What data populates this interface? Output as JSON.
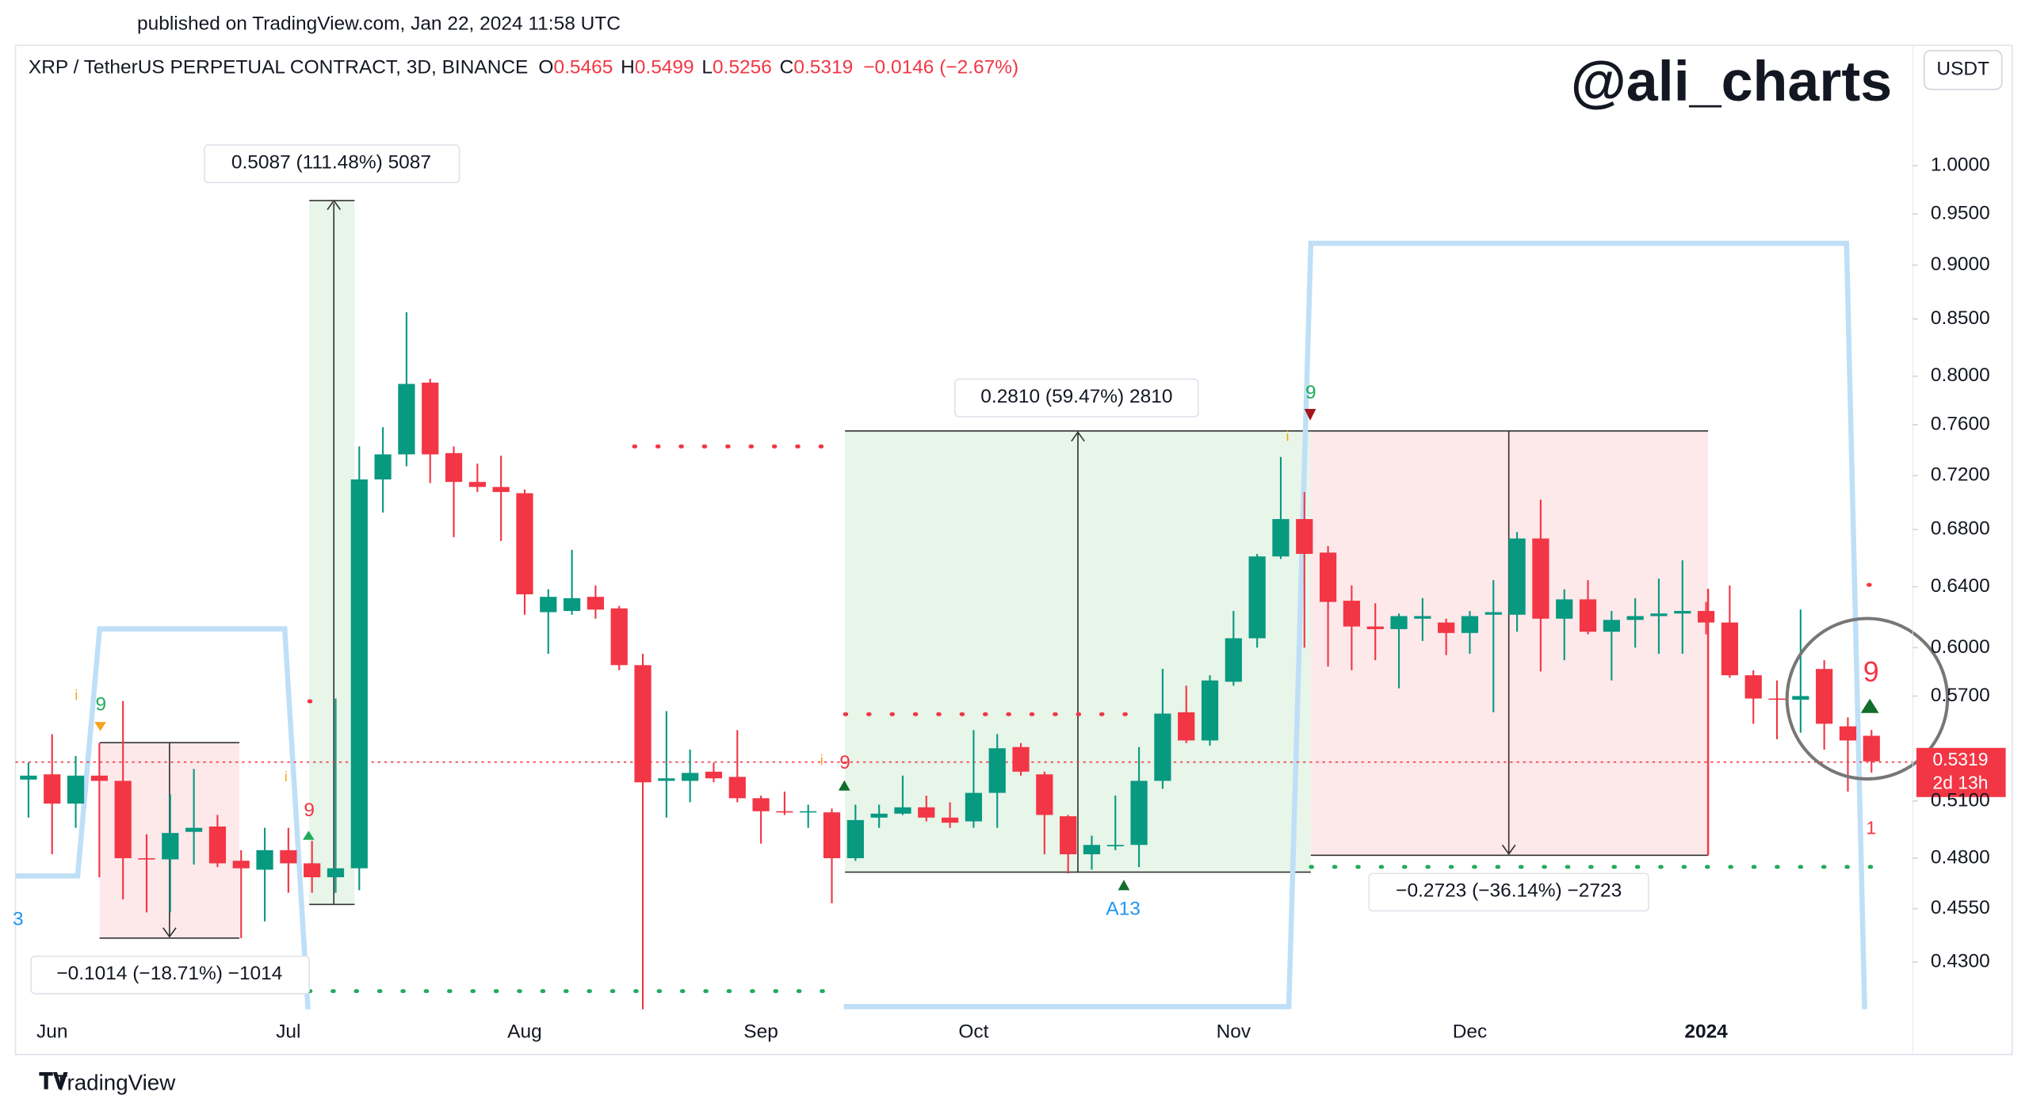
{
  "page": {
    "published": "published on TradingView.com, Jan 22, 2024 11:58 UTC",
    "brand": "TradingView",
    "watermark": "@ali_charts",
    "currency": "USDT"
  },
  "chart_data": {
    "type": "candlestick",
    "title": "XRP / TetherUS PERPETUAL CONTRACT, 3D, BINANCE",
    "ohlc_letters": [
      "O",
      "H",
      "L",
      "C"
    ],
    "change": "−0.0146 (−2.67%)",
    "countdown": "2d 13h",
    "up_color": "#089981",
    "down_color": "#f23645",
    "log_scale": true,
    "grid": false,
    "categories": [
      null,
      "Jun",
      null,
      null,
      null,
      null,
      null,
      null,
      null,
      null,
      null,
      "Jul",
      null,
      null,
      null,
      null,
      null,
      null,
      null,
      null,
      null,
      "Aug",
      null,
      null,
      null,
      null,
      null,
      null,
      null,
      null,
      null,
      "Sep",
      null,
      null,
      null,
      null,
      null,
      null,
      null,
      null,
      "Oct",
      null,
      null,
      null,
      null,
      null,
      null,
      null,
      null,
      null,
      null,
      "Nov",
      null,
      null,
      null,
      null,
      null,
      null,
      null,
      null,
      null,
      "Dec",
      null,
      null,
      null,
      null,
      null,
      null,
      null,
      null,
      null,
      "2024",
      null,
      null,
      null,
      null,
      null,
      null,
      null
    ],
    "open": [
      0.5217,
      0.5246,
      0.5086,
      0.5239,
      0.521,
      0.48,
      0.4794,
      0.4936,
      0.4964,
      0.4787,
      0.4742,
      0.4841,
      0.4774,
      0.4704,
      0.4749,
      0.7171,
      0.7364,
      0.7946,
      0.7374,
      0.7152,
      0.7114,
      0.7067,
      0.623,
      0.6238,
      0.6332,
      0.6255,
      0.589,
      0.521,
      0.521,
      0.5261,
      0.5232,
      0.5115,
      0.5045,
      0.5039,
      0.5039,
      0.48,
      0.5011,
      0.5032,
      0.5066,
      0.5011,
      0.4991,
      0.5144,
      0.54,
      0.5246,
      0.5018,
      0.482,
      0.4861,
      0.4868,
      0.521,
      0.5603,
      0.5438,
      0.5787,
      0.606,
      0.6609,
      0.6876,
      0.6636,
      0.6306,
      0.6136,
      0.6119,
      0.6187,
      0.6162,
      0.6094,
      0.6213,
      0.6213,
      0.6736,
      0.6187,
      0.6315,
      0.6102,
      0.6179,
      0.6204,
      0.6221,
      0.6238,
      0.6162,
      0.5827,
      0.5685,
      0.5678,
      0.5866,
      0.552,
      0.5465
    ],
    "high": [
      0.5312,
      0.5475,
      0.5349,
      0.5423,
      0.567,
      0.4923,
      0.5137,
      0.5276,
      0.5025,
      0.4841,
      0.4957,
      0.4957,
      0.4889,
      0.5685,
      0.7426,
      0.7579,
      0.8561,
      0.7978,
      0.7426,
      0.7292,
      0.7354,
      0.7095,
      0.6383,
      0.6655,
      0.6409,
      0.6272,
      0.5961,
      0.561,
      0.5385,
      0.5312,
      0.5498,
      0.5129,
      0.5151,
      0.508,
      0.5059,
      0.508,
      0.508,
      0.5239,
      0.5129,
      0.5093,
      0.5498,
      0.5475,
      0.5423,
      0.5261,
      0.5025,
      0.4916,
      0.5129,
      0.54,
      0.5866,
      0.5763,
      0.5827,
      0.6238,
      0.6627,
      0.7344,
      0.7076,
      0.6682,
      0.6409,
      0.6289,
      0.6221,
      0.6323,
      0.6187,
      0.6238,
      0.6445,
      0.6782,
      0.7019,
      0.6383,
      0.6445,
      0.6238,
      0.6323,
      0.6455,
      0.6582,
      0.6298,
      0.6409,
      0.5858,
      0.5795,
      0.6247,
      0.5921,
      0.5573,
      0.5499
    ],
    "low": [
      0.5011,
      0.482,
      0.4957,
      0.4704,
      0.4595,
      0.4532,
      0.4532,
      0.4768,
      0.4755,
      0.441,
      0.4489,
      0.4627,
      0.4627,
      0.4627,
      0.464,
      0.6924,
      0.7272,
      0.7143,
      0.6745,
      0.7076,
      0.6718,
      0.6213,
      0.5961,
      0.6213,
      0.6187,
      0.5858,
      0.409,
      0.5011,
      0.5093,
      0.5202,
      0.5093,
      0.4875,
      0.5025,
      0.4957,
      0.4576,
      0.4787,
      0.4957,
      0.5025,
      0.4991,
      0.4957,
      0.4957,
      0.4957,
      0.5239,
      0.482,
      0.4723,
      0.4742,
      0.4841,
      0.4755,
      0.5166,
      0.5423,
      0.5408,
      0.5763,
      0.6,
      0.6591,
      0.6,
      0.5882,
      0.5858,
      0.5921,
      0.5747,
      0.6043,
      0.5953,
      0.5961,
      0.5603,
      0.6102,
      0.585,
      0.5921,
      0.6085,
      0.5795,
      0.6,
      0.5961,
      0.5961,
      0.6085,
      0.5811,
      0.5535,
      0.5445,
      0.5483,
      0.5385,
      0.5151,
      0.5256
    ],
    "close": [
      0.5239,
      0.5086,
      0.5239,
      0.521,
      0.48,
      0.4794,
      0.493,
      0.4957,
      0.4774,
      0.4749,
      0.4841,
      0.4774,
      0.4704,
      0.4749,
      0.7171,
      0.7364,
      0.7935,
      0.7364,
      0.7152,
      0.7114,
      0.7076,
      0.6349,
      0.6332,
      0.6323,
      0.6247,
      0.589,
      0.5202,
      0.5224,
      0.5254,
      0.5224,
      0.5115,
      0.5045,
      0.5039,
      0.5045,
      0.48,
      0.4998,
      0.5032,
      0.5066,
      0.5011,
      0.4984,
      0.5144,
      0.5393,
      0.5261,
      0.5025,
      0.482,
      0.4868,
      0.4868,
      0.521,
      0.5595,
      0.5438,
      0.5795,
      0.606,
      0.6609,
      0.6876,
      0.6627,
      0.6298,
      0.6136,
      0.6119,
      0.6204,
      0.6204,
      0.6094,
      0.6204,
      0.623,
      0.6736,
      0.6187,
      0.6315,
      0.6102,
      0.6179,
      0.6204,
      0.6221,
      0.6238,
      0.6162,
      0.5827,
      0.5685,
      0.5678,
      0.57,
      0.5535,
      0.5438,
      0.5319
    ],
    "ylim": [
      0.409,
      1.136
    ],
    "yticks": [
      {
        "value": 1.0,
        "label": "1.0000"
      },
      {
        "value": 0.95,
        "label": "0.9500"
      },
      {
        "value": 0.9,
        "label": "0.9000"
      },
      {
        "value": 0.85,
        "label": "0.8500"
      },
      {
        "value": 0.8,
        "label": "0.8000"
      },
      {
        "value": 0.76,
        "label": "0.7600"
      },
      {
        "value": 0.72,
        "label": "0.7200"
      },
      {
        "value": 0.68,
        "label": "0.6800"
      },
      {
        "value": 0.64,
        "label": "0.6400"
      },
      {
        "value": 0.6,
        "label": "0.6000"
      },
      {
        "value": 0.57,
        "label": "0.5700"
      },
      {
        "value": 0.51,
        "label": "0.5100"
      },
      {
        "value": 0.48,
        "label": "0.4800"
      },
      {
        "value": 0.455,
        "label": "0.4550"
      },
      {
        "value": 0.43,
        "label": "0.4300"
      }
    ],
    "annotations": [
      "0.5087 (111.48%) 5087",
      "0.2810 (59.47%) 2810",
      "−0.2723 (−36.14%) −2723",
      "−0.1014 (−18.71%) −1014",
      "9",
      "9",
      "9",
      "9",
      "9",
      "A13",
      "1",
      "3",
      "i",
      "i",
      "i",
      "i"
    ]
  }
}
